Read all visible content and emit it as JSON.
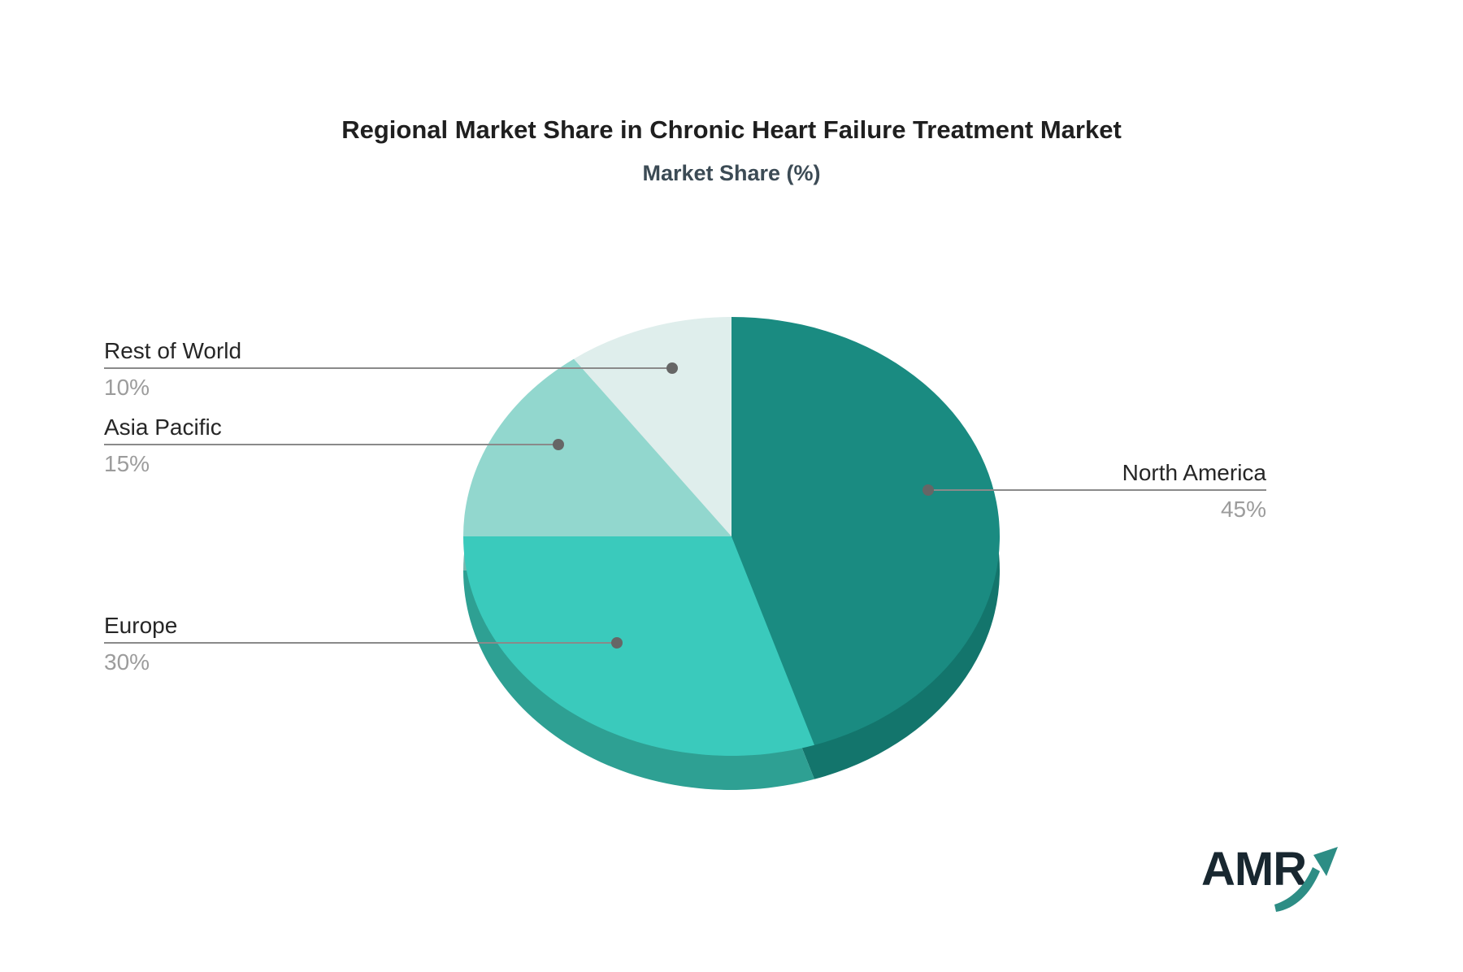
{
  "title": "Regional Market Share in Chronic Heart Failure Treatment Market",
  "subtitle": "Market Share (%)",
  "logo": {
    "text": "AMR",
    "text_color": "#182730",
    "arrow_color": "#2d8d85"
  },
  "chart_data": {
    "type": "pie",
    "title": "Regional Market Share in Chronic Heart Failure Treatment Market",
    "value_label": "Market Share (%)",
    "unit": "%",
    "direction": "clockwise",
    "start_angle_deg": 0,
    "style": "3d-depth",
    "leader_line_color": "#8a8a8a",
    "leader_dot_color": "#666666",
    "slices": [
      {
        "label": "North America",
        "value": 45,
        "display_value": "45%",
        "color": "#1a8b81",
        "side_color": "#13756c"
      },
      {
        "label": "Europe",
        "value": 30,
        "display_value": "30%",
        "color": "#3acabc",
        "side_color": "#2ea093"
      },
      {
        "label": "Asia Pacific",
        "value": 15,
        "display_value": "15%",
        "color": "#92d7ce",
        "side_color": "#74b8af"
      },
      {
        "label": "Rest of World",
        "value": 10,
        "display_value": "10%",
        "color": "#dfeeec",
        "side_color": "#bfd9d6"
      }
    ]
  }
}
